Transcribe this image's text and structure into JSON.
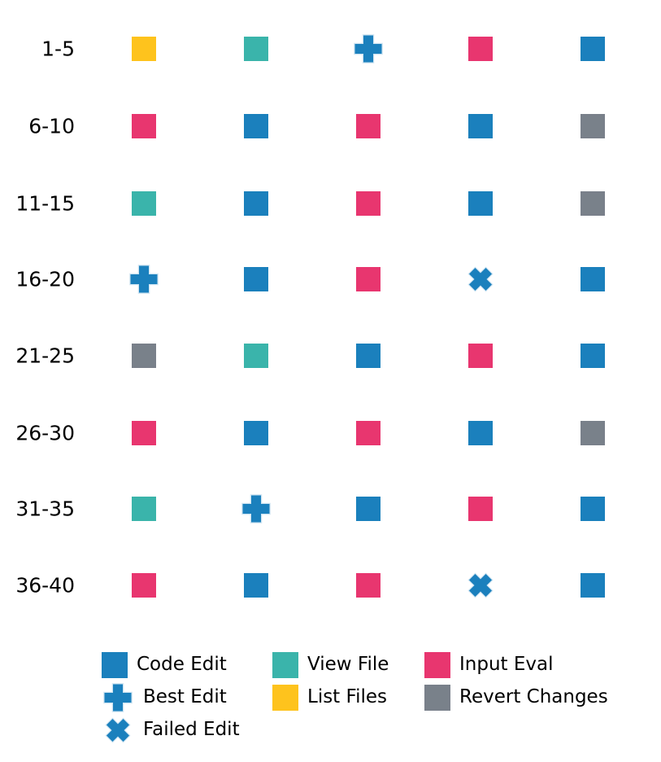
{
  "chart_data": {
    "type": "scatter",
    "title": "",
    "xlabel": "",
    "ylabel": "",
    "background": "#ffffff",
    "text_color": "#000000",
    "columns_per_row": 5,
    "row_labels": [
      "1-5",
      "6-10",
      "11-15",
      "16-20",
      "21-25",
      "26-30",
      "31-35",
      "36-40"
    ],
    "grid": [
      [
        "list_files",
        "view_file",
        "best_edit",
        "input_eval",
        "code_edit"
      ],
      [
        "input_eval",
        "code_edit",
        "input_eval",
        "code_edit",
        "revert_changes"
      ],
      [
        "view_file",
        "code_edit",
        "input_eval",
        "code_edit",
        "revert_changes"
      ],
      [
        "best_edit",
        "code_edit",
        "input_eval",
        "failed_edit",
        "code_edit"
      ],
      [
        "revert_changes",
        "view_file",
        "code_edit",
        "input_eval",
        "code_edit"
      ],
      [
        "input_eval",
        "code_edit",
        "input_eval",
        "code_edit",
        "revert_changes"
      ],
      [
        "view_file",
        "best_edit",
        "code_edit",
        "input_eval",
        "code_edit"
      ],
      [
        "input_eval",
        "code_edit",
        "input_eval",
        "failed_edit",
        "code_edit"
      ]
    ],
    "markers": {
      "code_edit": {
        "label": "Code Edit",
        "shape": "square",
        "color": "#1b80bd",
        "icon": "square-icon"
      },
      "view_file": {
        "label": "View File",
        "shape": "square",
        "color": "#3ab4ab",
        "icon": "square-icon"
      },
      "input_eval": {
        "label": "Input Eval",
        "shape": "square",
        "color": "#e8366f",
        "icon": "square-icon"
      },
      "best_edit": {
        "label": "Best Edit",
        "shape": "plus",
        "color": "#1b80bd",
        "icon": "plus-icon"
      },
      "list_files": {
        "label": "List Files",
        "shape": "square",
        "color": "#fec31d",
        "icon": "square-icon"
      },
      "revert_changes": {
        "label": "Revert Changes",
        "shape": "square",
        "color": "#79818a",
        "icon": "square-icon"
      },
      "failed_edit": {
        "label": "Failed Edit",
        "shape": "cross",
        "color": "#1b80bd",
        "icon": "cross-icon"
      }
    },
    "legend": {
      "position": "bottom",
      "order_column_major": [
        "code_edit",
        "best_edit",
        "failed_edit",
        "view_file",
        "list_files",
        "input_eval",
        "revert_changes"
      ]
    }
  }
}
